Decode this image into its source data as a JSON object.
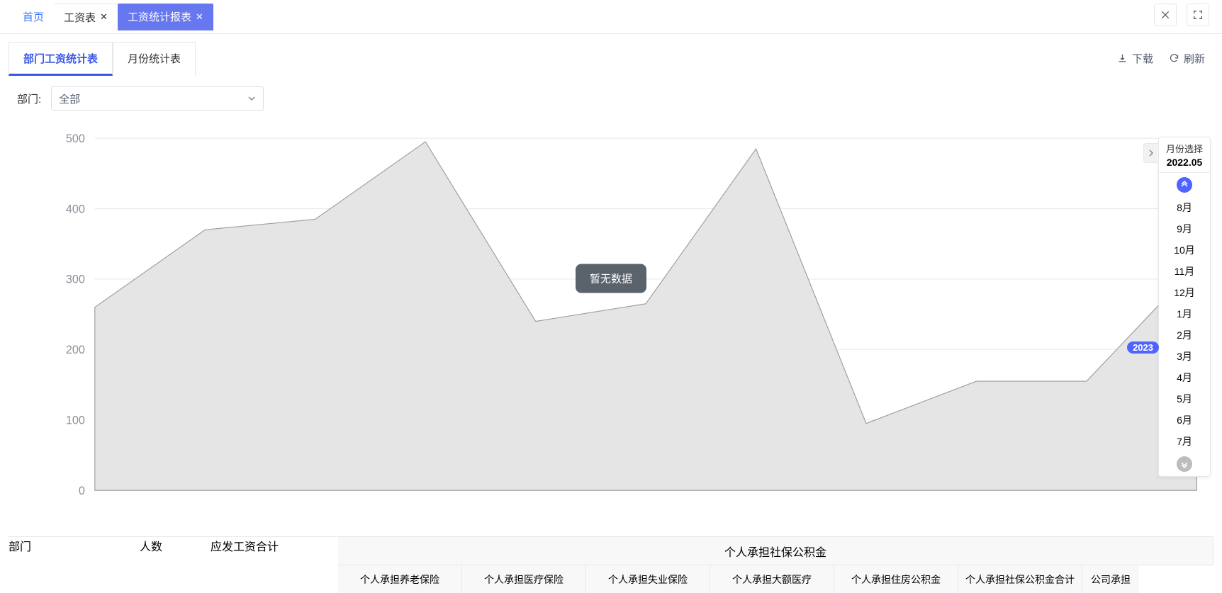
{
  "tabs": {
    "home": "首页",
    "salary": "工资表",
    "report": "工资统计报表"
  },
  "subtabs": {
    "dept": "部门工资统计表",
    "month": "月份统计表"
  },
  "actions": {
    "download": "下载",
    "refresh": "刷新"
  },
  "filter": {
    "label": "部门:",
    "value": "全部"
  },
  "chart": {
    "type": "area",
    "ylim": [
      0,
      500
    ],
    "yticks": [
      0,
      100,
      200,
      300,
      400,
      500
    ],
    "grid_color": "#e9ebef",
    "axis_color": "#8a8f99",
    "fill": "#e5e5e5",
    "stroke": "#9e9e9e",
    "tick_fontsize": 14,
    "values": [
      260,
      370,
      385,
      495,
      240,
      265,
      485,
      95,
      155,
      155,
      320
    ],
    "nodata": "暂无数据"
  },
  "table": {
    "cols": {
      "dept": "部门",
      "count": "人数",
      "total": "应发工资合计"
    },
    "group": "个人承担社保公积金",
    "subs": [
      "个人承担养老保险",
      "个人承担医疗保险",
      "个人承担失业保险",
      "个人承担大额医疗",
      "个人承担住房公积金",
      "个人承担社保公积金合计"
    ],
    "tail": "公司承担"
  },
  "monthpicker": {
    "title": "月份选择",
    "value": "2022.05",
    "year_badge": "2023",
    "months": [
      "8月",
      "9月",
      "10月",
      "11月",
      "12月",
      "1月",
      "2月",
      "3月",
      "4月",
      "5月",
      "6月",
      "7月"
    ]
  }
}
